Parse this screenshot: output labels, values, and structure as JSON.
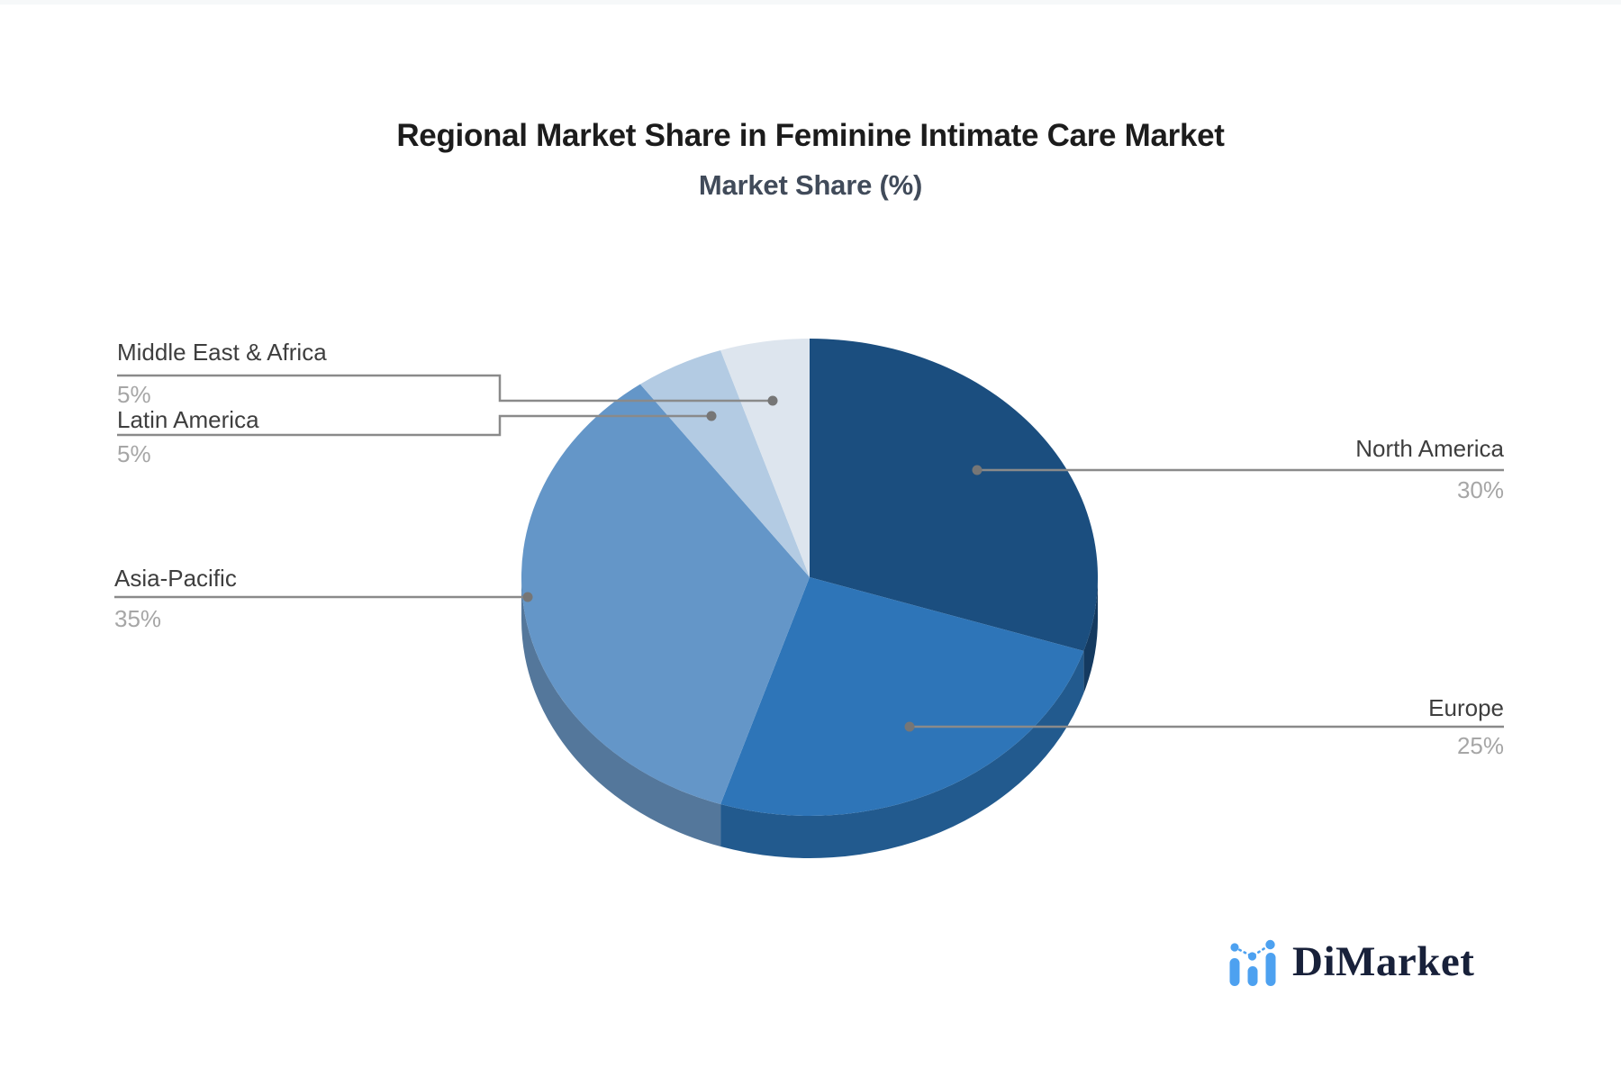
{
  "title": "Regional Market Share in Feminine Intimate Care Market",
  "subtitle": "Market Share (%)",
  "chart_data": {
    "type": "pie",
    "title": "Regional Market Share in Feminine Intimate Care Market",
    "subtitle": "Market Share (%)",
    "unit": "%",
    "start_angle_deg": 0,
    "direction": "clockwise",
    "effect_3d": true,
    "legend_position": "callout-labels",
    "slices": [
      {
        "label": "North America",
        "value": 30,
        "pct_label": "30%",
        "color": "#1b4e7f",
        "side_color": "#143a60",
        "label_side": "right"
      },
      {
        "label": "Europe",
        "value": 25,
        "pct_label": "25%",
        "color": "#2e75b8",
        "side_color": "#225a8e",
        "label_side": "right"
      },
      {
        "label": "Asia-Pacific",
        "value": 35,
        "pct_label": "35%",
        "color": "#6496c8",
        "side_color": "#54779b",
        "label_side": "left"
      },
      {
        "label": "Latin America",
        "value": 5,
        "pct_label": "5%",
        "color": "#b3cbe3",
        "side_color": "#8fa8c2",
        "label_side": "left"
      },
      {
        "label": "Middle East & Africa",
        "value": 5,
        "pct_label": "5%",
        "color": "#dde5ee",
        "side_color": "#b8c3cf",
        "label_side": "left"
      }
    ],
    "callout_line_color": "#8a8a8a",
    "label_color": "#3e3e3e",
    "pct_color": "#a6a6a6"
  },
  "brand": {
    "name": "DiMarket",
    "icon": "bar-chart-logo-icon",
    "accent_color": "#4da1f0",
    "text_color": "#18213a"
  }
}
